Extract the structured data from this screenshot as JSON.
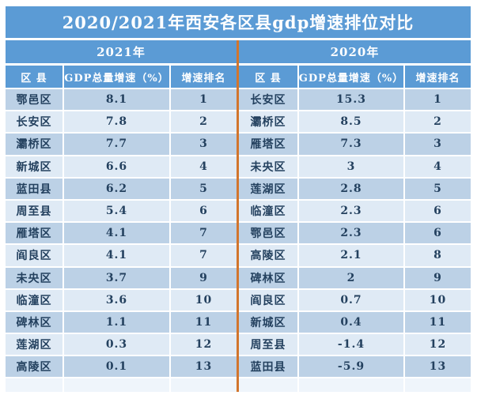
{
  "title": "2020/2021年西安各区县gdp增速排位对比",
  "colors": {
    "header_blue": "#5b9bd5",
    "row_dark": "#bcd1e6",
    "row_light": "#dfeaf5",
    "divider_orange": "#d2752c",
    "text_dark": "#24415f",
    "footer_row": "#eff5fb",
    "background": "#ffffff"
  },
  "chart_data": [
    {
      "type": "table",
      "year_label": "2021年",
      "columns": [
        "区  县",
        "GDP总量增速（%）",
        "增速排名"
      ],
      "rows": [
        [
          "鄂邑区",
          "8.1",
          "1"
        ],
        [
          "长安区",
          "7.8",
          "2"
        ],
        [
          "灞桥区",
          "7.7",
          "3"
        ],
        [
          "新城区",
          "6.6",
          "4"
        ],
        [
          "蓝田县",
          "6.2",
          "5"
        ],
        [
          "周至县",
          "5.4",
          "6"
        ],
        [
          "雁塔区",
          "4.1",
          "7"
        ],
        [
          "阎良区",
          "4.1",
          "7"
        ],
        [
          "未央区",
          "3.7",
          "9"
        ],
        [
          "临潼区",
          "3.6",
          "10"
        ],
        [
          "碑林区",
          "1.1",
          "11"
        ],
        [
          "莲湖区",
          "0.3",
          "12"
        ],
        [
          "高陵区",
          "0.1",
          "13"
        ]
      ]
    },
    {
      "type": "table",
      "year_label": "2020年",
      "columns": [
        "区  县",
        "GDP总量增速（%）",
        "增速排名"
      ],
      "rows": [
        [
          "长安区",
          "15.3",
          "1"
        ],
        [
          "灞桥区",
          "8.5",
          "2"
        ],
        [
          "雁塔区",
          "7.3",
          "3"
        ],
        [
          "未央区",
          "3",
          "4"
        ],
        [
          "莲湖区",
          "2.8",
          "5"
        ],
        [
          "临潼区",
          "2.3",
          "6"
        ],
        [
          "鄂邑区",
          "2.3",
          "6"
        ],
        [
          "高陵区",
          "2.1",
          "8"
        ],
        [
          "碑林区",
          "2",
          "9"
        ],
        [
          "阎良区",
          "0.7",
          "10"
        ],
        [
          "新城区",
          "0.4",
          "11"
        ],
        [
          "周至县",
          "-1.4",
          "12"
        ],
        [
          "蓝田县",
          "-5.9",
          "13"
        ]
      ]
    }
  ]
}
